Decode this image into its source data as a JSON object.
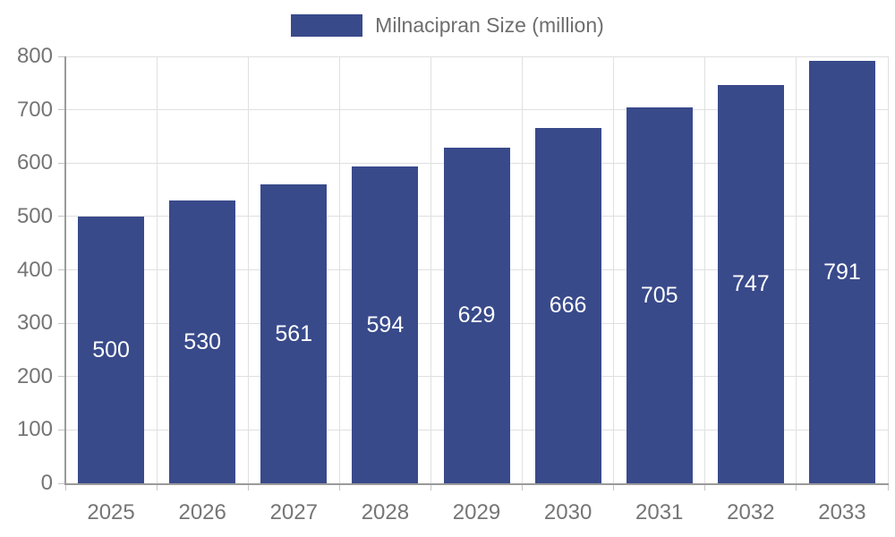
{
  "colors": {
    "bar": "#394A8B",
    "grid": "#e0e0e0",
    "axis": "#9a9a9a",
    "tick": "#c4c4c4",
    "axis_label": "#757575",
    "legend_text": "#6e6e6e",
    "bar_label": "#ffffff",
    "background": "#ffffff"
  },
  "legend": {
    "label": "Milnacipran Size (million)"
  },
  "chart_data": {
    "type": "bar",
    "title": "Milnacipran Size (million)",
    "categories": [
      "2025",
      "2026",
      "2027",
      "2028",
      "2029",
      "2030",
      "2031",
      "2032",
      "2033"
    ],
    "values": [
      500,
      530,
      561,
      594,
      629,
      666,
      705,
      747,
      791
    ],
    "series_name": "Milnacipran Size (million)",
    "xlabel": "",
    "ylabel": "",
    "ylim": [
      0,
      800
    ],
    "ytick_step": 100,
    "yticks": [
      0,
      100,
      200,
      300,
      400,
      500,
      600,
      700,
      800
    ],
    "grid": true,
    "legend_position": "top",
    "value_labels": "inside-center"
  }
}
